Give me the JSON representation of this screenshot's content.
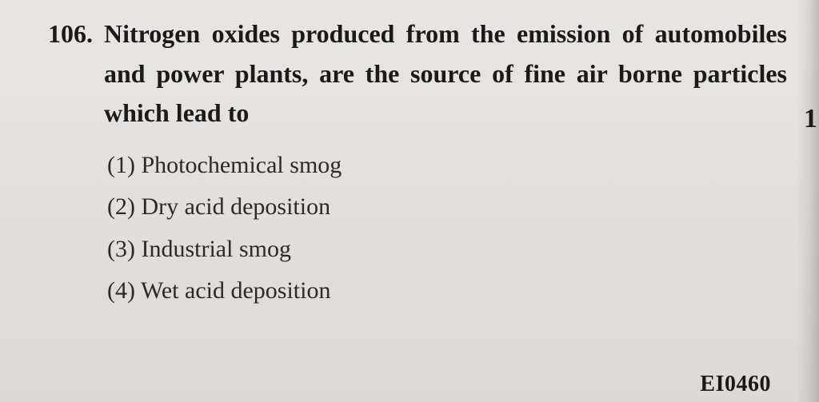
{
  "question": {
    "number": "106.",
    "text": "Nitrogen oxides produced from the emission of automobiles and power plants, are the source of fine air borne particles which lead to",
    "options": [
      {
        "label": "(1)",
        "text": "Photochemical smog"
      },
      {
        "label": "(2)",
        "text": "Dry acid deposition"
      },
      {
        "label": "(3)",
        "text": "Industrial smog"
      },
      {
        "label": "(4)",
        "text": "Wet acid deposition"
      }
    ]
  },
  "code": "EI0460",
  "stray": "1",
  "styling": {
    "background_top": "#e8e6e3",
    "background_bottom": "#ddd9d5",
    "text_color": "#2a2a2a",
    "heading_color": "#1a1a1a",
    "question_fontsize": 32,
    "option_fontsize": 30,
    "code_fontsize": 28,
    "font_family": "Georgia, Times New Roman, serif",
    "line_height_question": 1.55,
    "line_height_option": 1.75
  }
}
